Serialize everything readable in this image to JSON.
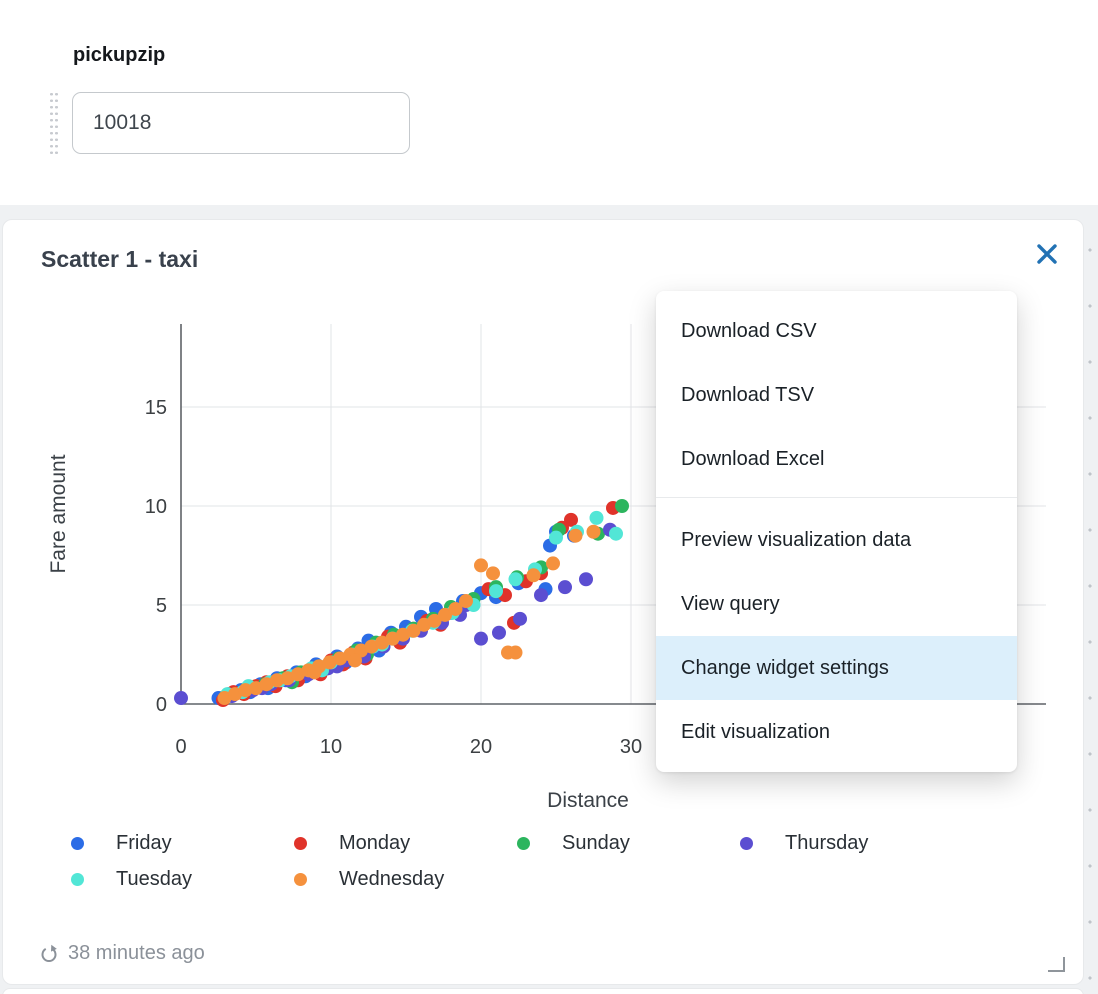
{
  "filter": {
    "label": "pickupzip",
    "value": "10018"
  },
  "widget": {
    "title": "Scatter 1 - taxi",
    "refresh_text": "38 minutes ago",
    "close_icon_color": "#2272b4"
  },
  "menu": {
    "items": [
      {
        "label": "Download CSV"
      },
      {
        "label": "Download TSV"
      },
      {
        "label": "Download Excel",
        "divider_after": true
      },
      {
        "label": "Preview visualization data"
      },
      {
        "label": "View query"
      },
      {
        "label": "Change widget settings",
        "highlighted": true
      },
      {
        "label": "Edit visualization"
      }
    ]
  },
  "chart_data": {
    "type": "scatter",
    "title": "Scatter 1 - taxi",
    "xlabel": "Distance",
    "ylabel": "Fare amount",
    "xlim": [
      0,
      57
    ],
    "ylim": [
      0,
      19
    ],
    "x_ticks": [
      0,
      10,
      20,
      30
    ],
    "y_ticks": [
      0,
      5,
      10,
      15
    ],
    "grid": true,
    "legend_position": "bottom",
    "series": [
      {
        "name": "Friday",
        "color": "#2b6ce6",
        "points": [
          [
            2.5,
            0.3
          ],
          [
            3.2,
            0.5
          ],
          [
            4,
            0.7
          ],
          [
            4.6,
            0.6
          ],
          [
            5.3,
            1.0
          ],
          [
            5.8,
            0.8
          ],
          [
            6.4,
            1.3
          ],
          [
            7,
            1.2
          ],
          [
            7.7,
            1.6
          ],
          [
            8.3,
            1.4
          ],
          [
            9,
            2.0
          ],
          [
            9.6,
            1.8
          ],
          [
            10.4,
            2.4
          ],
          [
            11,
            2.1
          ],
          [
            11.8,
            2.8
          ],
          [
            12.5,
            3.2
          ],
          [
            13.2,
            2.7
          ],
          [
            14,
            3.6
          ],
          [
            15,
            3.9
          ],
          [
            16,
            4.4
          ],
          [
            17,
            4.8
          ],
          [
            18,
            4.6
          ],
          [
            18.8,
            5.2
          ],
          [
            20,
            5.6
          ],
          [
            21,
            5.4
          ],
          [
            22.5,
            6.1
          ],
          [
            24.6,
            8.0
          ],
          [
            25,
            8.7
          ],
          [
            26.2,
            8.5
          ],
          [
            24.3,
            5.8
          ]
        ]
      },
      {
        "name": "Monday",
        "color": "#e0332a",
        "points": [
          [
            2.8,
            0.2
          ],
          [
            3.5,
            0.6
          ],
          [
            4.2,
            0.5
          ],
          [
            5,
            0.9
          ],
          [
            5.7,
            1.1
          ],
          [
            6.3,
            0.9
          ],
          [
            7.1,
            1.4
          ],
          [
            7.8,
            1.2
          ],
          [
            8.6,
            1.7
          ],
          [
            9.3,
            1.5
          ],
          [
            10,
            2.2
          ],
          [
            10.8,
            2.0
          ],
          [
            11.5,
            2.6
          ],
          [
            12.3,
            2.3
          ],
          [
            13,
            3.0
          ],
          [
            13.8,
            3.4
          ],
          [
            14.6,
            3.1
          ],
          [
            15.5,
            3.8
          ],
          [
            16.4,
            4.2
          ],
          [
            17.3,
            4.0
          ],
          [
            18.2,
            4.7
          ],
          [
            19.4,
            5.1
          ],
          [
            20.5,
            5.8
          ],
          [
            21.6,
            5.5
          ],
          [
            23,
            6.2
          ],
          [
            24,
            6.6
          ],
          [
            26,
            9.3
          ],
          [
            28.8,
            9.9
          ],
          [
            25.4,
            8.9
          ],
          [
            22.2,
            4.1
          ]
        ]
      },
      {
        "name": "Sunday",
        "color": "#2cb55e",
        "points": [
          [
            3,
            0.4
          ],
          [
            4.4,
            0.8
          ],
          [
            5.6,
            1.0
          ],
          [
            6.8,
            1.3
          ],
          [
            8,
            1.6
          ],
          [
            9.2,
            1.9
          ],
          [
            10.5,
            2.3
          ],
          [
            11.7,
            2.7
          ],
          [
            13,
            3.1
          ],
          [
            14.2,
            3.5
          ],
          [
            15.5,
            3.8
          ],
          [
            16.8,
            4.3
          ],
          [
            18,
            4.9
          ],
          [
            19.5,
            5.3
          ],
          [
            21,
            5.9
          ],
          [
            22.4,
            6.4
          ],
          [
            24,
            6.9
          ],
          [
            25.2,
            8.8
          ],
          [
            29.4,
            10.0
          ],
          [
            27.8,
            8.6
          ],
          [
            12.4,
            2.5
          ],
          [
            7.4,
            1.1
          ]
        ]
      },
      {
        "name": "Thursday",
        "color": "#5b4ed1",
        "points": [
          [
            0,
            0.3
          ],
          [
            3.4,
            0.4
          ],
          [
            4.8,
            0.7
          ],
          [
            6,
            1.0
          ],
          [
            7.2,
            1.2
          ],
          [
            8.5,
            1.5
          ],
          [
            9.8,
            1.8
          ],
          [
            11,
            2.2
          ],
          [
            12.2,
            2.4
          ],
          [
            13.5,
            2.9
          ],
          [
            14.8,
            3.3
          ],
          [
            16,
            3.7
          ],
          [
            17.4,
            4.1
          ],
          [
            18.6,
            4.5
          ],
          [
            20,
            3.3
          ],
          [
            21.2,
            3.6
          ],
          [
            22.6,
            4.3
          ],
          [
            24,
            5.5
          ],
          [
            25.6,
            5.9
          ],
          [
            27,
            6.3
          ],
          [
            28.6,
            8.8
          ],
          [
            19,
            5.0
          ],
          [
            10.4,
            1.9
          ],
          [
            5.4,
            0.8
          ]
        ]
      },
      {
        "name": "Tuesday",
        "color": "#52e6d6",
        "points": [
          [
            3.1,
            0.5
          ],
          [
            4.5,
            0.9
          ],
          [
            5.9,
            1.1
          ],
          [
            7.3,
            1.4
          ],
          [
            8.7,
            1.8
          ],
          [
            10,
            2.1
          ],
          [
            11.4,
            2.5
          ],
          [
            12.8,
            2.9
          ],
          [
            14.1,
            3.3
          ],
          [
            15.4,
            3.7
          ],
          [
            16.8,
            4.1
          ],
          [
            18.1,
            4.6
          ],
          [
            19.5,
            5.0
          ],
          [
            21,
            5.7
          ],
          [
            22.3,
            6.3
          ],
          [
            23.6,
            6.8
          ],
          [
            25,
            8.4
          ],
          [
            26.4,
            8.7
          ],
          [
            27.7,
            9.4
          ],
          [
            29,
            8.6
          ],
          [
            13.4,
            3.0
          ],
          [
            9.4,
            1.7
          ],
          [
            6.6,
            1.2
          ],
          [
            4.1,
            0.6
          ]
        ]
      },
      {
        "name": "Wednesday",
        "color": "#f5913d",
        "points": [
          [
            2.9,
            0.3
          ],
          [
            3.6,
            0.5
          ],
          [
            4.3,
            0.7
          ],
          [
            5,
            0.8
          ],
          [
            5.7,
            1.0
          ],
          [
            6.4,
            1.2
          ],
          [
            7.1,
            1.3
          ],
          [
            7.8,
            1.5
          ],
          [
            8.5,
            1.7
          ],
          [
            9.2,
            1.9
          ],
          [
            9.9,
            2.1
          ],
          [
            10.6,
            2.3
          ],
          [
            11.3,
            2.5
          ],
          [
            12,
            2.7
          ],
          [
            12.7,
            2.9
          ],
          [
            13.4,
            3.1
          ],
          [
            14.1,
            3.3
          ],
          [
            14.8,
            3.5
          ],
          [
            15.5,
            3.7
          ],
          [
            16.2,
            4.0
          ],
          [
            16.9,
            4.2
          ],
          [
            17.6,
            4.5
          ],
          [
            18.3,
            4.8
          ],
          [
            19,
            5.2
          ],
          [
            20,
            7.0
          ],
          [
            20.8,
            6.6
          ],
          [
            21.8,
            2.6
          ],
          [
            22.3,
            2.6
          ],
          [
            23.5,
            6.5
          ],
          [
            24.8,
            7.1
          ],
          [
            26.3,
            8.5
          ],
          [
            27.5,
            8.7
          ],
          [
            11.6,
            2.2
          ],
          [
            8.9,
            1.6
          ]
        ]
      }
    ]
  }
}
